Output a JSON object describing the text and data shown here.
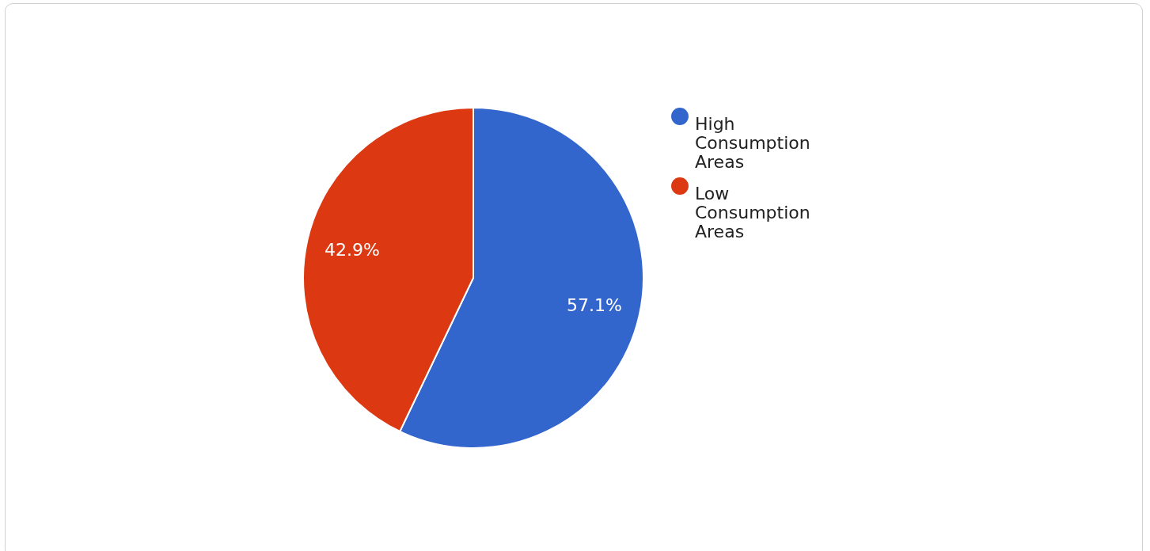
{
  "chart_data": {
    "type": "pie",
    "categories": [
      "High Consumption Areas",
      "Low Consumption Areas"
    ],
    "values": [
      57.1,
      42.9
    ],
    "colors": [
      "#3366cc",
      "#dc3912"
    ],
    "value_labels": [
      "57.1%",
      "42.9%"
    ],
    "legend": "top right"
  }
}
